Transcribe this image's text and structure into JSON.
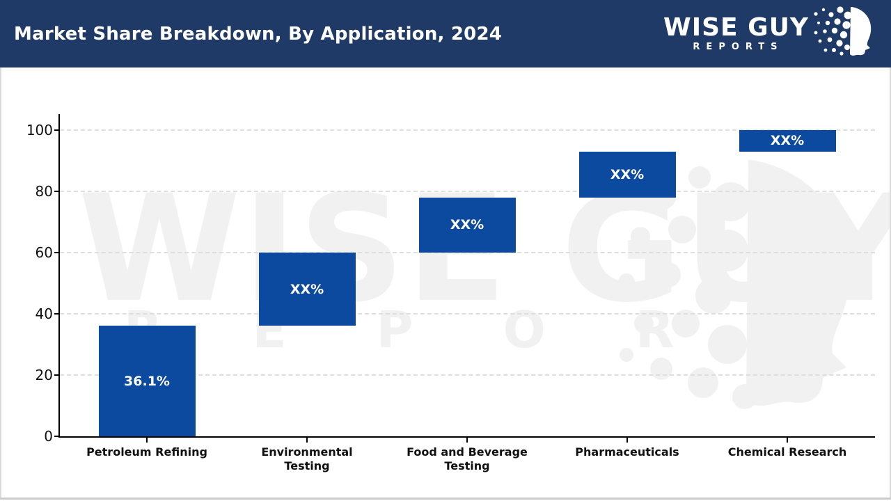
{
  "header": {
    "title": "Market Share Breakdown, By Application, 2024",
    "bg_color": "#1f3a66",
    "logo": {
      "line1": "WISE GUY",
      "line2": "REPORTS",
      "head_icon": "dotted-head-profile-icon"
    }
  },
  "watermark": {
    "line1": "WISE GUY",
    "line2": "R E P O R T S"
  },
  "chart_data": {
    "type": "bar",
    "subtype": "waterfall",
    "title": "Market Share Breakdown, By Application, 2024",
    "categories": [
      "Petroleum Refining",
      "Environmental\nTesting",
      "Food and Beverage\nTesting",
      "Pharmaceuticals",
      "Chemical Research"
    ],
    "bars": [
      {
        "category": "Petroleum Refining",
        "start": 0,
        "end": 36.1,
        "label": "36.1%"
      },
      {
        "category": "Environmental Testing",
        "start": 36.1,
        "end": 60,
        "label": "XX%"
      },
      {
        "category": "Food and Beverage Testing",
        "start": 60,
        "end": 78,
        "label": "XX%"
      },
      {
        "category": "Pharmaceuticals",
        "start": 78,
        "end": 93,
        "label": "XX%"
      },
      {
        "category": "Chemical Research",
        "start": 93,
        "end": 100,
        "label": "XX%"
      }
    ],
    "ylabel": "",
    "xlabel": "",
    "yticks": [
      0,
      20,
      40,
      60,
      80,
      100
    ],
    "ylim": [
      0,
      105
    ],
    "grid": "horizontal-dashed",
    "legend": "none",
    "bar_color": "#0b4a9e",
    "grid_color": "#dedede",
    "value_label_color": "#ffffff"
  }
}
